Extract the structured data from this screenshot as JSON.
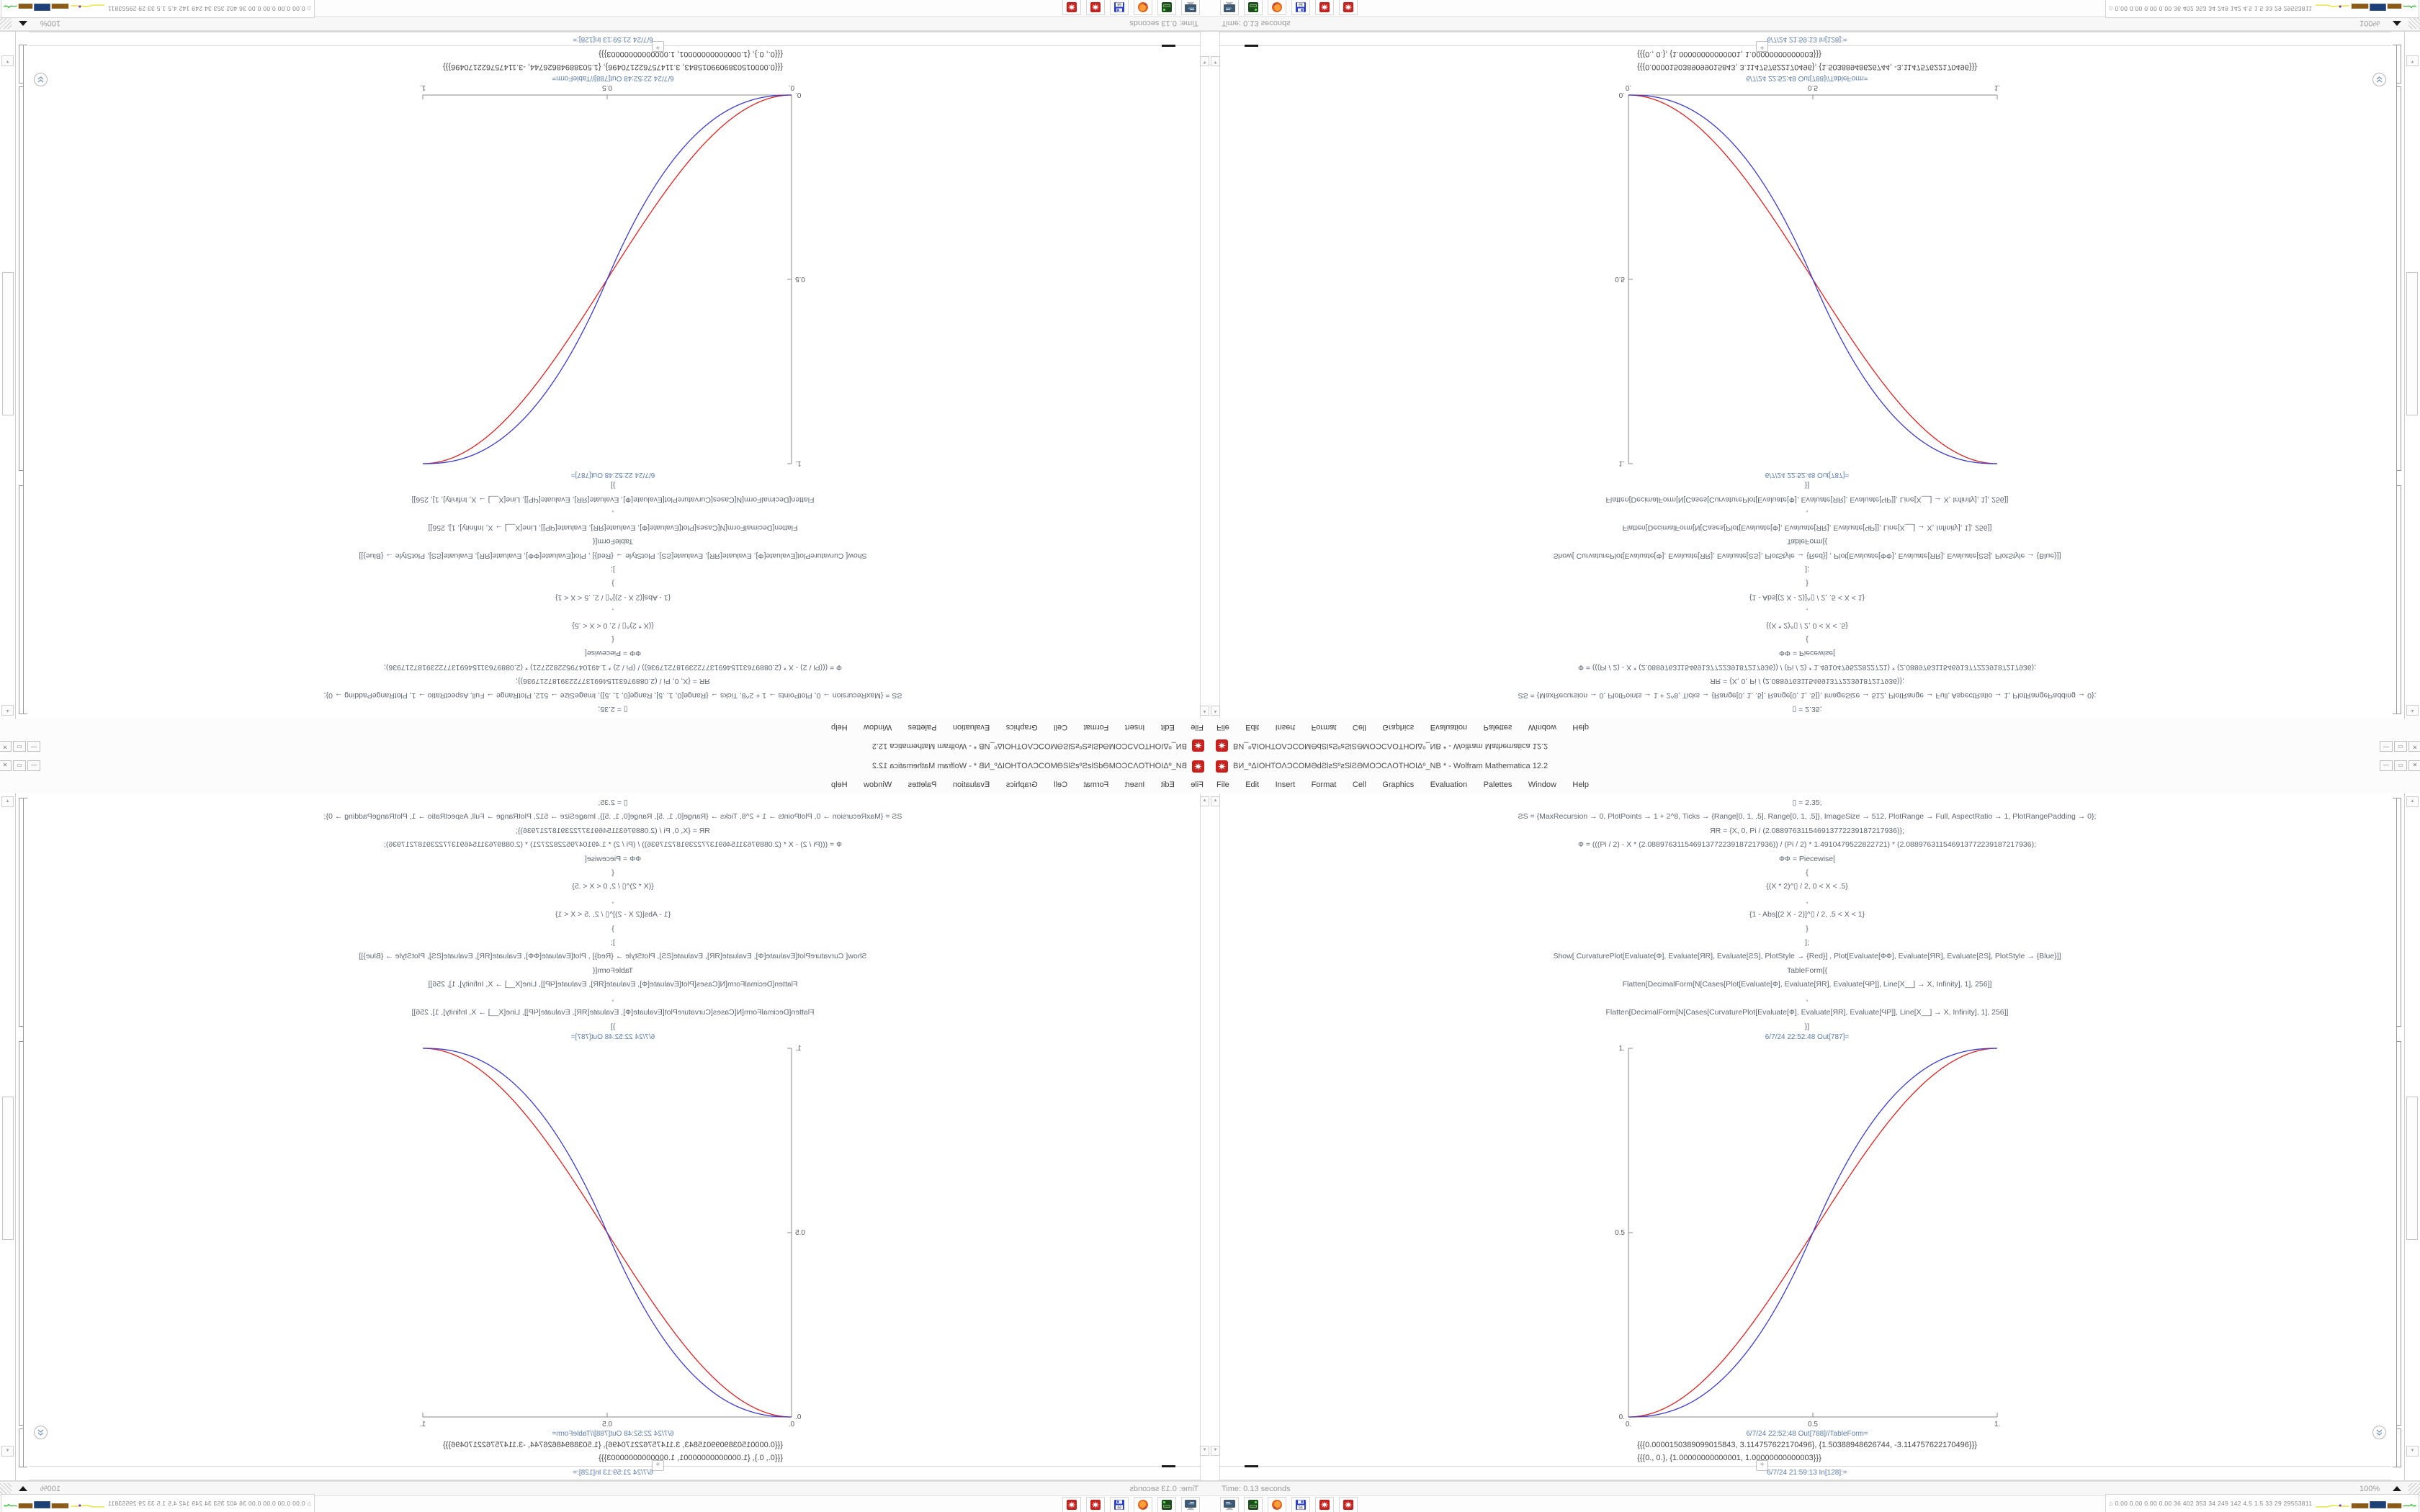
{
  "window": {
    "title": "ВИ_ºΔIOHTOΛƆCOMƏdƧlƨSºƨSlƧƏMOƆCΛOTHOIΔº_NB * - Wolfram Mathematica 12.2",
    "menu": [
      "File",
      "Edit",
      "Insert",
      "Format",
      "Cell",
      "Graphics",
      "Evaluation",
      "Palettes",
      "Window",
      "Help"
    ],
    "controls": {
      "minimize": "—",
      "maximize": "▭",
      "close": "✕"
    }
  },
  "icons": {
    "up_arrow": "▲",
    "down_arrow": "▼",
    "tray_monitor": "⌂",
    "plus": "+"
  },
  "notebook": {
    "code_lines": [
      "▯ = 2.35;",
      "ƧS = {MaxRecursion → 0, PlotPoints → 1 + 2^8, Ticks → {Range[0, 1, .5], Range[0, 1, .5]}, ImageSize → 512, PlotRange → Full, AspectRatio → 1, PlotRangePadding → 0};",
      "ЯR = {X, 0, Pi / (2.088976311546913772239187217936)};",
      "Ф = (((Pi / 2) - X * (2.088976311546913772239187217936)) / (Pi / 2) * 1.4910479522822721) * (2.088976311546913772239187217936);",
      "ФФ = Piecewise[",
      "{",
      "{(X * 2)^▯ / 2, 0 < X < .5}",
      ",",
      "{1 - Abs[(2 X - 2)]^▯ / 2, .5 < X < 1}",
      "}",
      "];",
      "Show[  CurvaturePlot[Evaluate[Ф], Evaluate[ЯR], Evaluate[ƧS], PlotStyle → {Red}]  ,  Plot[Evaluate[ФФ], Evaluate[ЯR], Evaluate[ƧS], PlotStyle → {Blue}]]",
      "TableForm[{",
      "Flatten[DecimalForm[N[Cases[Plot[Evaluate[Ф], Evaluate[ЯR], Evaluate[ϤP]], Line[X__] → X, Infinity], 1], 256]]",
      ",",
      "Flatten[DecimalForm[N[Cases[CurvaturePlot[Evaluate[Ф], Evaluate[ЯR], Evaluate[ϤP]], Line[X__] → X, Infinity], 1], 256]]",
      "}]"
    ],
    "out_plot_label": "6/7/24 22:52:48 Out[787]=",
    "out_table_label": "6/7/24 22:52:48 Out[788]//TableForm=",
    "table_rows": [
      "{{{0.0000150389099015843, 3.114757622170496}, {1.50388948626744, -3.114757622170496}}}",
      "{{{0., 0.}, {1.00000000000001, 1.00000000000003}}}"
    ],
    "next_in_label": "6/7/24 21:59:13 In[128]:="
  },
  "chart_data": {
    "type": "line",
    "title": "",
    "xlabel": "",
    "ylabel": "",
    "x_range": [
      0,
      1
    ],
    "y_range": [
      0,
      1
    ],
    "x_ticks": [
      "0.",
      "0.5",
      "1."
    ],
    "y_ticks": [
      "0.",
      "0.5",
      "1."
    ],
    "axes": "left-bottom",
    "grid": false,
    "legend": "none",
    "aspect_ratio": 1,
    "image_size": 512,
    "series": [
      {
        "name": "CurvaturePlot (Red)",
        "color": "#dd2222",
        "model": "sine",
        "x": [
          0,
          0.1,
          0.2,
          0.3,
          0.4,
          0.5,
          0.6,
          0.7,
          0.8,
          0.9,
          1
        ],
        "y": [
          0,
          0.0245,
          0.0955,
          0.2061,
          0.3455,
          0.5,
          0.6545,
          0.7939,
          0.9045,
          0.9755,
          1
        ]
      },
      {
        "name": "Plot piecewise (Blue)",
        "color": "#3b3bcf",
        "model": "power",
        "exponent": 2.35,
        "x": [
          0,
          0.1,
          0.2,
          0.3,
          0.4,
          0.5,
          0.6,
          0.7,
          0.8,
          0.9,
          1
        ],
        "y": [
          0,
          0.0114,
          0.058,
          0.1506,
          0.296,
          0.5,
          0.704,
          0.8494,
          0.942,
          0.9886,
          1
        ]
      }
    ]
  },
  "status_bar": {
    "left": "Time: 0.13 seconds",
    "zoom": "100%"
  },
  "taskbar": {
    "tray_values": "0.00 0.00 0.00 0.00   36   402  353   34   249  142  4.5   1.5   33   29   29553811"
  }
}
